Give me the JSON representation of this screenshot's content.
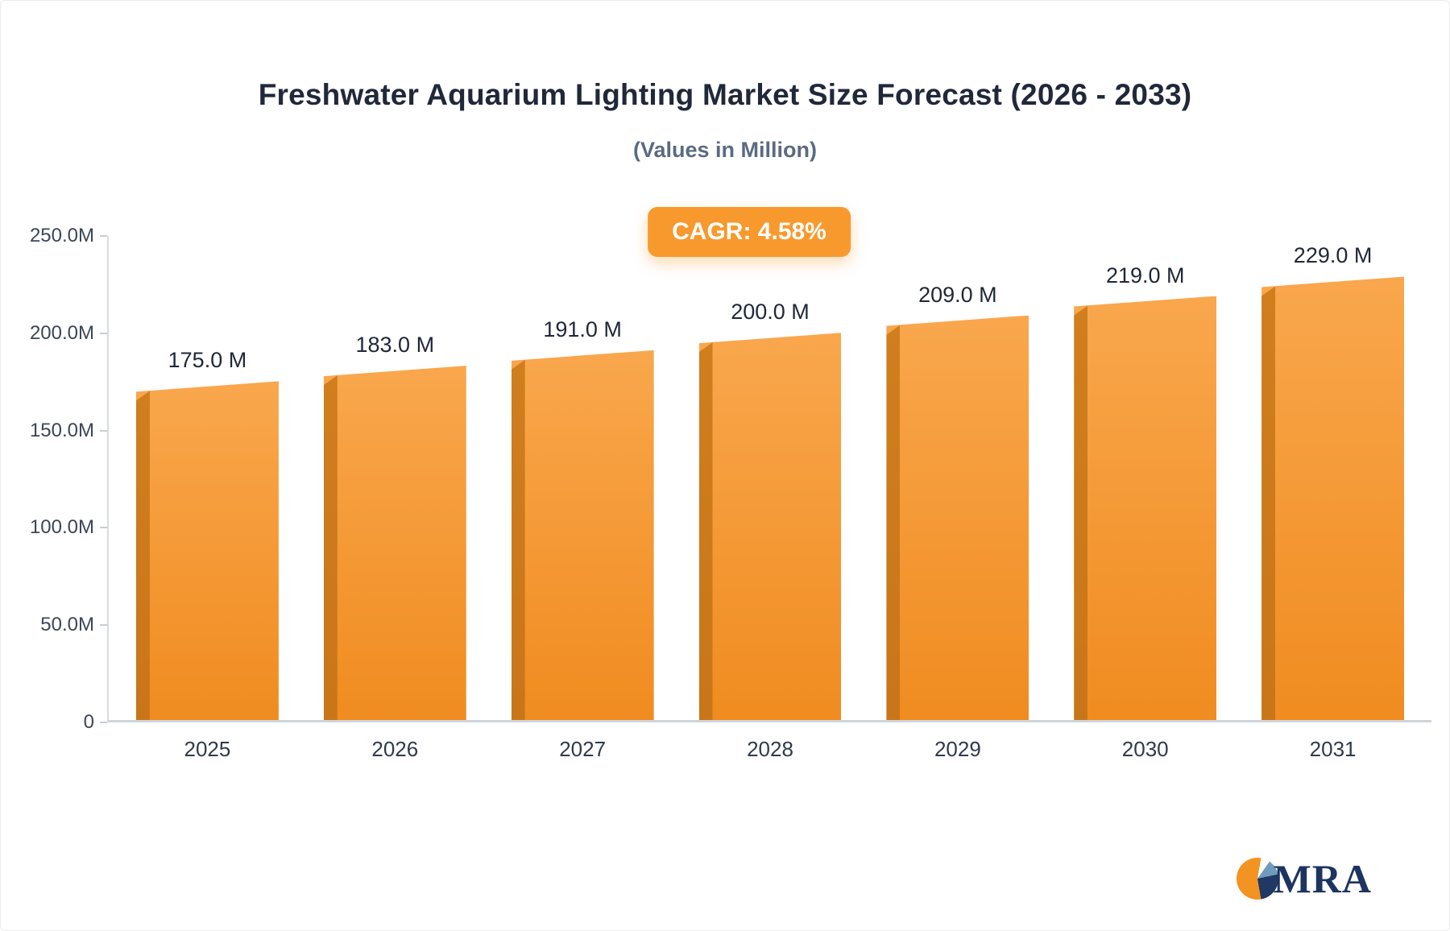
{
  "header": {
    "title": "Freshwater Aquarium Lighting Market Size Forecast (2026 - 2033)",
    "subtitle": "(Values in Million)"
  },
  "cagr_badge": {
    "label": "CAGR: 4.58%"
  },
  "chart_data": {
    "type": "bar",
    "title": "Freshwater Aquarium Lighting Market Size Forecast (2026 - 2033)",
    "subtitle": "(Values in Million)",
    "categories": [
      "2025",
      "2026",
      "2027",
      "2028",
      "2029",
      "2030",
      "2031"
    ],
    "values": [
      175.0,
      183.0,
      191.0,
      200.0,
      209.0,
      219.0,
      229.0
    ],
    "bar_labels": [
      "175.0 M",
      "183.0 M",
      "191.0 M",
      "200.0 M",
      "209.0 M",
      "219.0 M",
      "229.0 M"
    ],
    "y_ticks": [
      "250.0M",
      "200.0M",
      "150.0M",
      "100.0M",
      "50.0M",
      "0"
    ],
    "ylim": [
      0,
      250
    ],
    "xlabel": "",
    "ylabel": "",
    "grid": false,
    "legend": false,
    "colors": {
      "bar_top": "#f9a74d",
      "bar_bottom": "#f08c20",
      "bar_side": "#c87619",
      "badge": "#f8992e"
    }
  },
  "logo": {
    "text": "MRA"
  }
}
